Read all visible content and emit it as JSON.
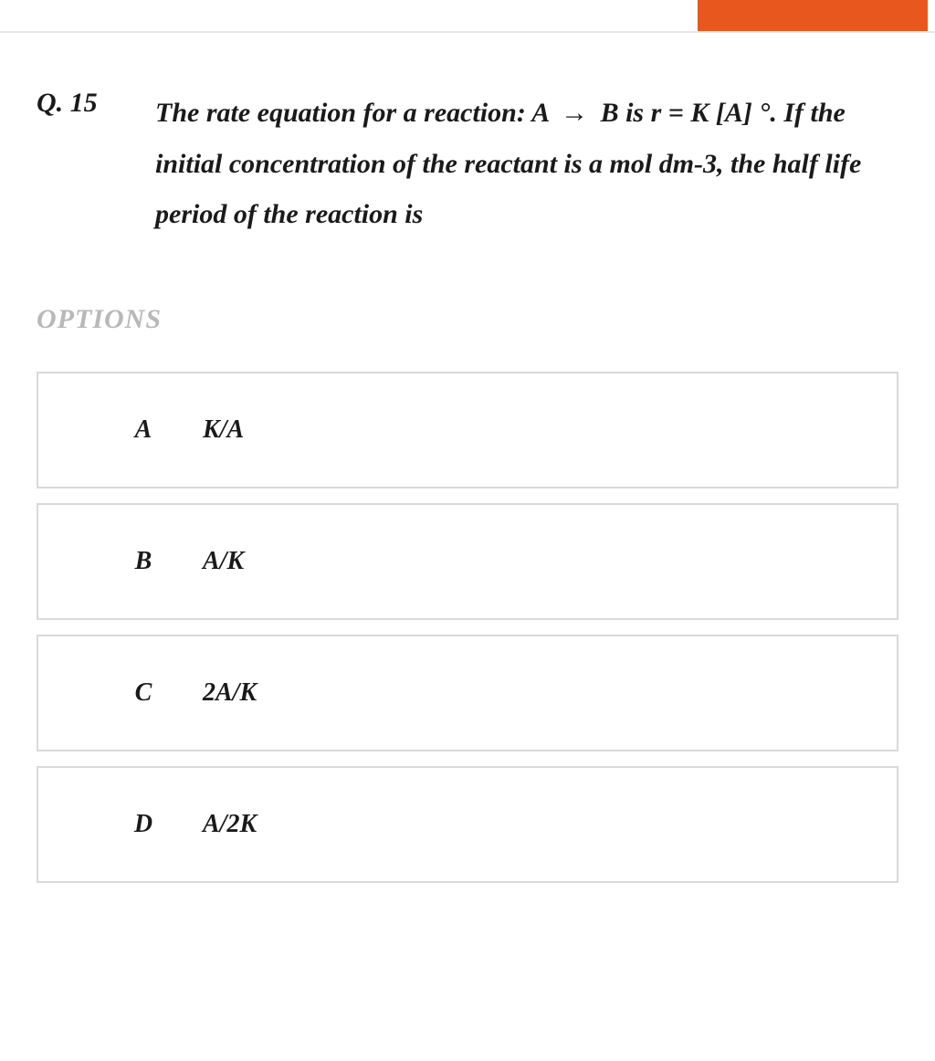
{
  "header": {
    "accent_color": "#e8571e"
  },
  "question": {
    "number": "Q. 15",
    "text_part1": "The rate equation for a reaction: A ",
    "arrow": "→",
    "text_part2": " B is r = K [A] °. If the initial concentration of the reactant is a mol dm-3, the half life period of the reaction is"
  },
  "options_label": "OPTIONS",
  "options": [
    {
      "letter": "A",
      "text": "K/A"
    },
    {
      "letter": "B",
      "text": "A/K"
    },
    {
      "letter": "C",
      "text": "2A/K"
    },
    {
      "letter": "D",
      "text": "A/2K"
    }
  ]
}
